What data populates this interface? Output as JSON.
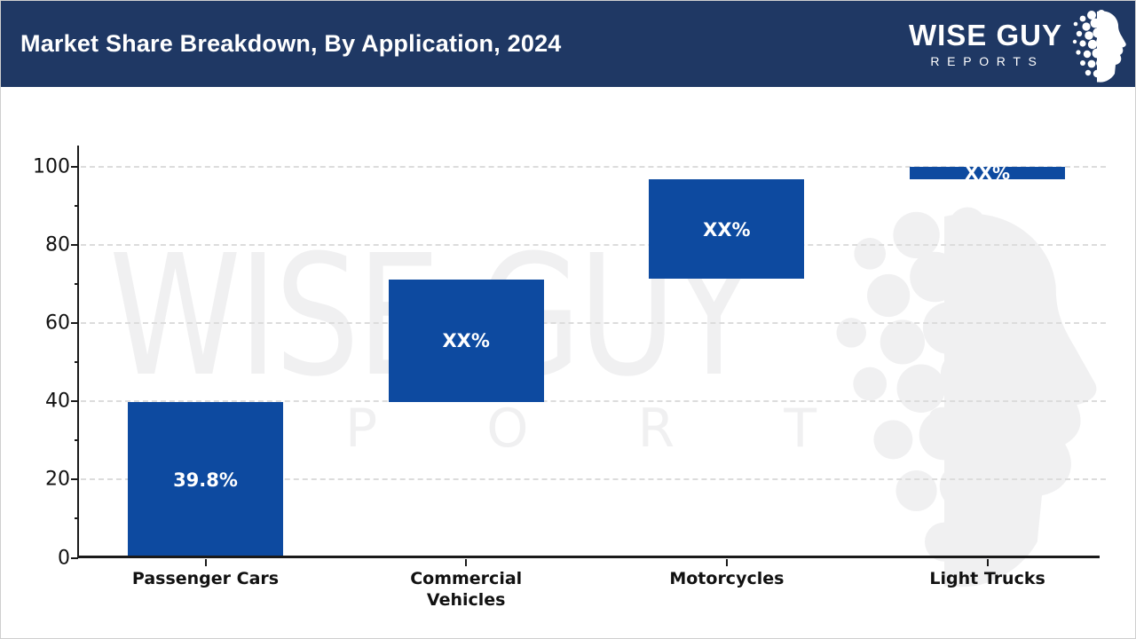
{
  "header": {
    "title": "Market Share Breakdown, By Application, 2024",
    "background_color": "#1F3864"
  },
  "logo": {
    "name": "WISE GUY",
    "subtitle": "REPORTS",
    "face_icon": "head-profile-dots-icon",
    "color": "#ffffff"
  },
  "watermark": {
    "line1": "WISE GUY",
    "line2": "P O R T S",
    "color": "#F0F0F1"
  },
  "chart_data": {
    "type": "bar",
    "subtype": "waterfall (floating segments cumulating to 100%)",
    "title": "Market Share Breakdown, By Application, 2024",
    "categories": [
      "Passenger Cars",
      "Commercial Vehicles",
      "Motorcycles",
      "Light Trucks"
    ],
    "categories_display": [
      "Passenger Cars",
      "Commercial\nVehicles",
      "Motorcycles",
      "Light Trucks"
    ],
    "segments": [
      {
        "category": "Passenger Cars",
        "start": 0,
        "end": 39.8,
        "value": 39.8,
        "label": "39.8%"
      },
      {
        "category": "Commercial Vehicles",
        "start": 39.8,
        "end": 71.2,
        "value": 31.4,
        "label": "XX%"
      },
      {
        "category": "Motorcycles",
        "start": 71.2,
        "end": 96.6,
        "value": 25.4,
        "label": "XX%"
      },
      {
        "category": "Light Trucks",
        "start": 96.6,
        "end": 100,
        "value": 3.4,
        "label": "XX%"
      }
    ],
    "xlabel": "",
    "ylabel": "",
    "ylim": [
      0,
      104
    ],
    "yticks": [
      0,
      20,
      40,
      60,
      80,
      100
    ],
    "minor_yticks": [
      10,
      30,
      50,
      70,
      90
    ],
    "grid": {
      "horizontal": true,
      "style": "dashed",
      "color": "#dcdcdc"
    },
    "legend": "none",
    "bar_color": "#0D4AA0",
    "bar_label_color": "#ffffff",
    "axis_color": "#1a1a1a"
  }
}
